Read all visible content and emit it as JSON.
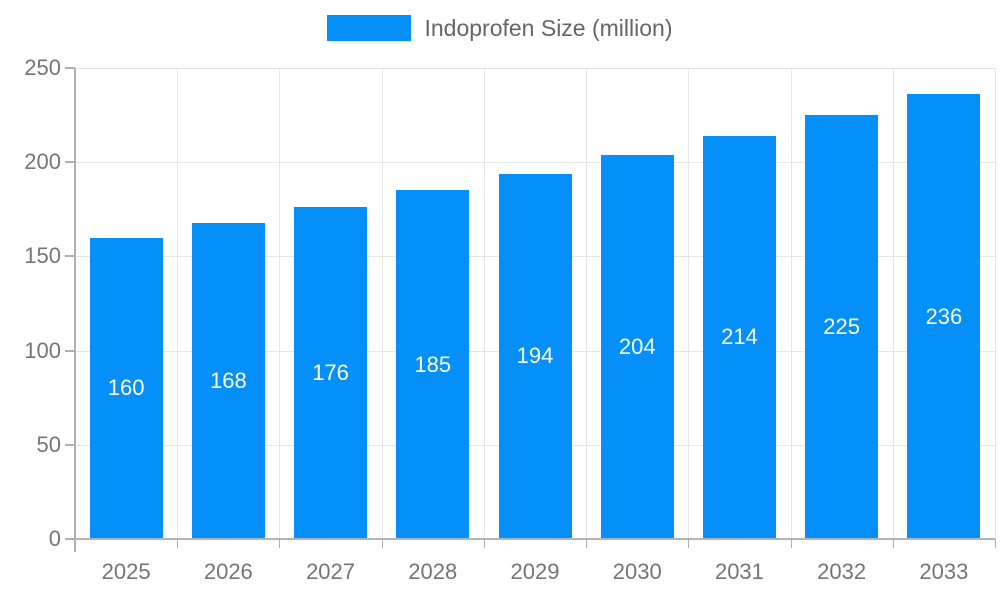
{
  "chart_data": {
    "type": "bar",
    "categories": [
      "2025",
      "2026",
      "2027",
      "2028",
      "2029",
      "2030",
      "2031",
      "2032",
      "2033"
    ],
    "series": [
      {
        "name": "Indoprofen Size (million)",
        "values": [
          160,
          168,
          176,
          185,
          194,
          204,
          214,
          225,
          236
        ]
      }
    ],
    "title": "",
    "xlabel": "",
    "ylabel": "",
    "ylim": [
      0,
      250
    ],
    "y_ticks": [
      0,
      50,
      100,
      150,
      200,
      250
    ],
    "grid": true,
    "legend_position": "top-center",
    "value_labels": "inside-center"
  },
  "colors": {
    "bar": "#0490f8",
    "bar_value_label": "#ffffff",
    "grid": "#e5e5e5",
    "axis": "#b0b0b0",
    "tick_text": "#757575",
    "legend_text": "#666666",
    "background": "#ffffff"
  }
}
